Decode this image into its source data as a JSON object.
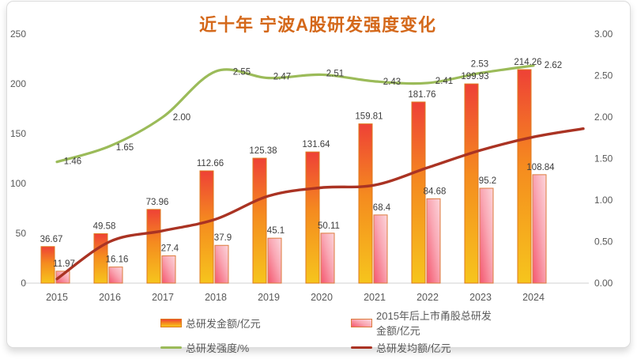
{
  "chart_data": {
    "type": "combo bar + line",
    "title": "近十年 宁波A股研发强度变化",
    "title_color": "#d4681a",
    "categories": [
      "2015",
      "2016",
      "2017",
      "2018",
      "2019",
      "2020",
      "2021",
      "2022",
      "2023",
      "2024"
    ],
    "left_axis": {
      "min": 0,
      "max": 250,
      "ticks": [
        "0",
        "50",
        "100",
        "150",
        "200",
        "250"
      ]
    },
    "right_axis": {
      "min": 0.0,
      "max": 3.0,
      "ticks": [
        "0.00",
        "0.50",
        "1.00",
        "1.50",
        "2.00",
        "2.50",
        "3.00"
      ]
    },
    "grid": "off",
    "legend_position": "bottom",
    "series": [
      {
        "name": "总研发金额/亿元",
        "type": "bar",
        "axis": "left",
        "gradient": [
          "#f6c51d",
          "#f58b1f",
          "#ee4136"
        ],
        "border_color": "#de7a1c",
        "values": [
          36.67,
          49.58,
          73.96,
          112.66,
          125.38,
          131.64,
          159.81,
          181.76,
          199.93,
          214.26
        ],
        "labels": [
          "36.67",
          "49.58",
          "73.96",
          "112.66",
          "125.38",
          "131.64",
          "159.81",
          "181.76",
          "199.93",
          "214.26"
        ]
      },
      {
        "name": "2015年后上市甬股总研发金额/亿元",
        "type": "bar",
        "axis": "left",
        "gradient": [
          "#f4566e",
          "#f9a6b3",
          "#fcd6dc"
        ],
        "border_color": "#dd7b3d",
        "values": [
          11.97,
          16.16,
          27.4,
          37.9,
          45.1,
          50.11,
          68.4,
          84.68,
          95.2,
          108.84
        ],
        "labels": [
          "11.97",
          "16.16",
          "27.4",
          "37.9",
          "45.1",
          "50.11",
          "68.4",
          "84.68",
          "95.2",
          "108.84"
        ]
      },
      {
        "name": "总研发强度/%",
        "type": "line",
        "axis": "right",
        "color": "#9bbb59",
        "values": [
          1.46,
          1.65,
          2.0,
          2.55,
          2.47,
          2.51,
          2.43,
          2.41,
          2.53,
          2.62
        ],
        "labels": [
          "1.46",
          "1.65",
          "2.00",
          "2.55",
          "2.47",
          "2.51",
          "2.43",
          "2.41",
          "2.53",
          "2.62"
        ]
      },
      {
        "name": "总研发均额/亿元",
        "type": "line",
        "axis": "right",
        "color": "#aa3323",
        "values": [
          0.05,
          0.5,
          0.63,
          0.77,
          1.05,
          1.15,
          1.18,
          1.39,
          1.6,
          1.76
        ],
        "extra_point_value": 1.86,
        "labels": []
      }
    ]
  }
}
